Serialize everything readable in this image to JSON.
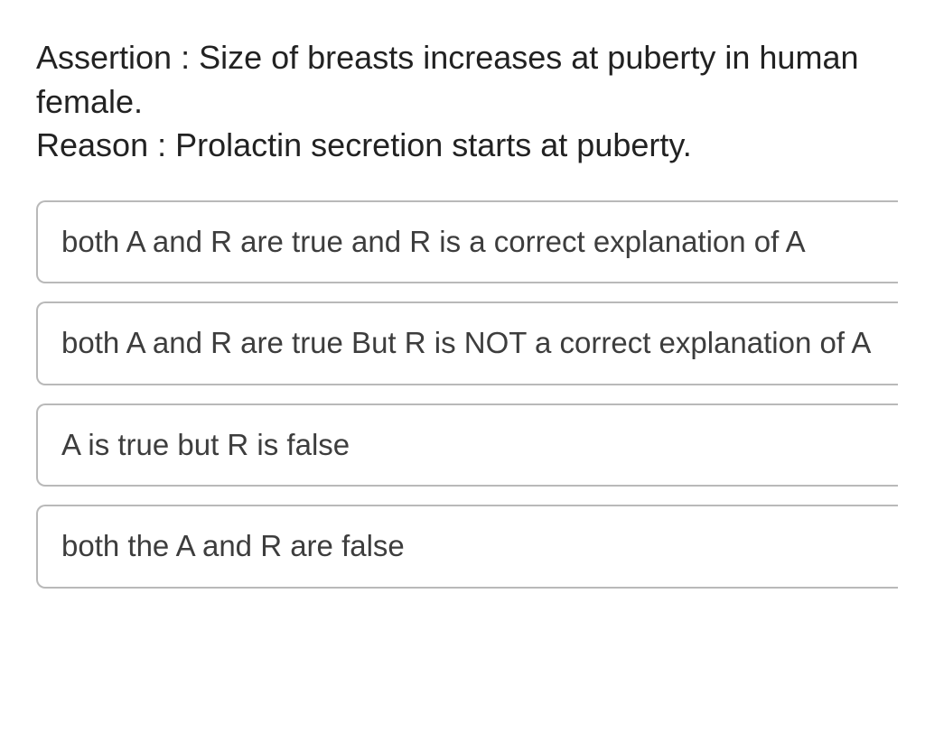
{
  "question": {
    "assertion_label": "Assertion :",
    "assertion_text": "Size of breasts increases at puberty in human female.",
    "reason_label": "Reason :",
    "reason_text": "Prolactin secretion starts at puberty."
  },
  "options": [
    {
      "text": "both A and R are true and R is a correct explanation of A"
    },
    {
      "text": "both A and R are true But R is NOT a correct explanation of A"
    },
    {
      "text": "A is true but R is false"
    },
    {
      "text": "both the A and R are false"
    }
  ],
  "styles": {
    "background_color": "#ffffff",
    "question_text_color": "#222222",
    "option_text_color": "#3d3d3d",
    "option_border_color": "#b9b9b9",
    "question_fontsize": 36,
    "option_fontsize": 33,
    "option_border_radius": 10,
    "option_gap": 20
  }
}
